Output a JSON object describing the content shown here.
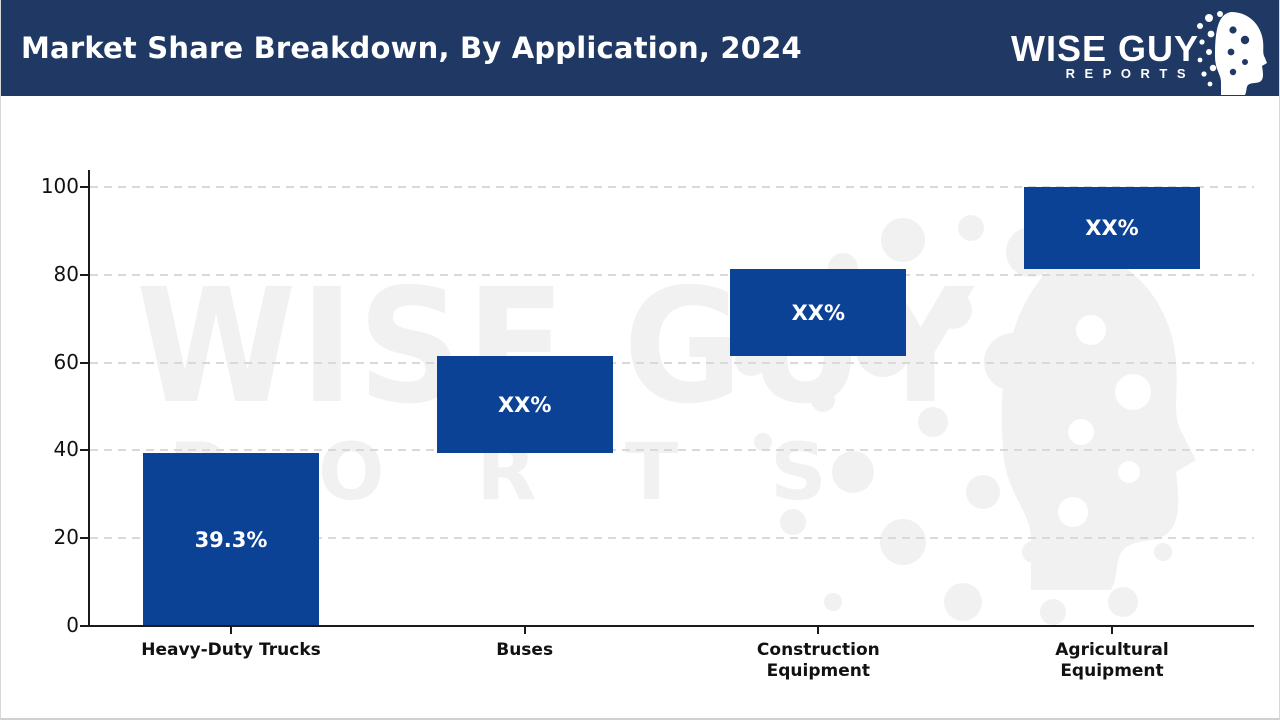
{
  "header": {
    "title": "Market Share Breakdown, By Application, 2024",
    "bg_color": "#1f3864",
    "logo": {
      "wordmark": "WISE GUY",
      "subtitle": "REPORTS"
    }
  },
  "watermark": {
    "line1": "WISE GUY",
    "line2": "PORTS"
  },
  "chart_data": {
    "type": "bar",
    "subtype": "waterfall",
    "title": "Market Share Breakdown, By Application, 2024",
    "categories": [
      "Heavy-Duty Trucks",
      "Buses",
      "Construction Equipment",
      "Agricultural Equipment"
    ],
    "segments": [
      {
        "category": "Heavy-Duty Trucks",
        "label": "39.3%",
        "value_start": 0,
        "value_end": 39.3
      },
      {
        "category": "Buses",
        "label": "XX%",
        "value_start": 39.3,
        "value_end": 61.5
      },
      {
        "category": "Construction Equipment",
        "label": "XX%",
        "value_start": 61.5,
        "value_end": 81.3
      },
      {
        "category": "Agricultural Equipment",
        "label": "XX%",
        "value_start": 81.3,
        "value_end": 100
      }
    ],
    "yticks": [
      0,
      20,
      40,
      60,
      80,
      100
    ],
    "ylim": [
      0,
      103.9
    ],
    "xlabel": "",
    "ylabel": "",
    "legend": "none",
    "grid": "horizontal-dashed",
    "bar_color": "#0c4295",
    "bar_label_color": "#ffffff",
    "axis_color": "#1a1a1a",
    "gridline_color": "#d8d8d8"
  }
}
